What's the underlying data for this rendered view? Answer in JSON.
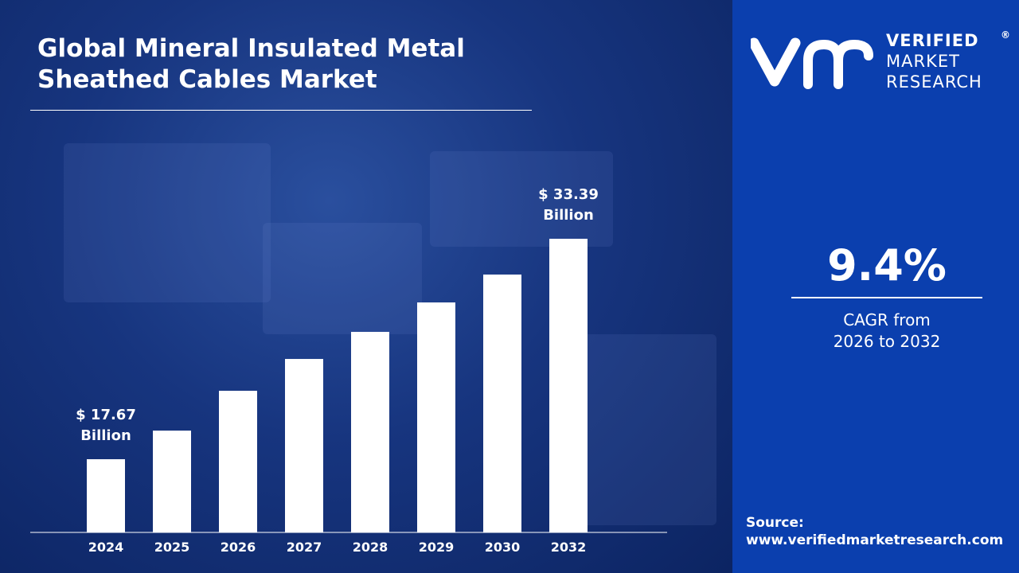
{
  "title_line1": "Global Mineral Insulated Metal",
  "title_line2": "Sheathed Cables Market",
  "logo": {
    "line1": "VERIFIED",
    "line2": "MARKET",
    "line3": "RESEARCH",
    "mark": "vmr"
  },
  "cagr": {
    "value": "9.4%",
    "label_line1": "CAGR from",
    "label_line2": "2026 to 2032"
  },
  "source": {
    "label": "Source:",
    "url": "www.verifiedmarketresearch.com"
  },
  "colors": {
    "panel": "#0b3fae",
    "bars": "#ffffff",
    "background": "#17357f"
  },
  "chart_data": {
    "type": "bar",
    "categories": [
      "2024",
      "2025",
      "2026",
      "2027",
      "2028",
      "2029",
      "2030",
      "2032"
    ],
    "values": [
      17.67,
      19.71,
      22.55,
      24.82,
      26.75,
      28.85,
      30.84,
      33.39
    ],
    "unit": "Billion",
    "annotations": [
      {
        "category": "2024",
        "line1": "$ 17.67",
        "line2": "Billion"
      },
      {
        "category": "2032",
        "line1": "$ 33.39",
        "line2": "Billion"
      }
    ],
    "grid": false
  }
}
